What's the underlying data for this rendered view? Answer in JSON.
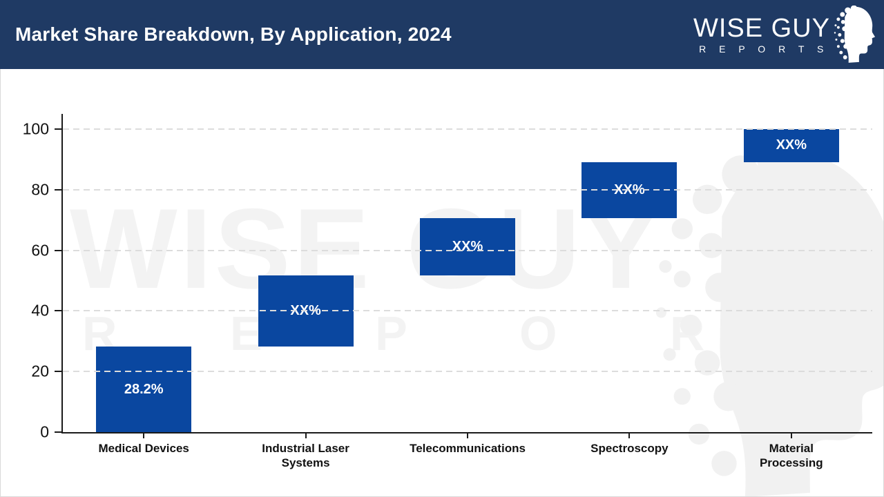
{
  "header": {
    "title": "Market Share Breakdown, By Application, 2024",
    "bg_color": "#1f3a64",
    "logo": {
      "wordmark": "WISE GUY",
      "subtext": "R E P O R T S"
    }
  },
  "watermark": {
    "wordmark": "WISE GUY",
    "subtext": "R E P O R T S"
  },
  "chart_data": {
    "type": "bar",
    "subtype": "waterfall",
    "title": "Market Share Breakdown, By Application, 2024",
    "categories": [
      "Medical Devices",
      "Industrial Laser Systems",
      "Telecommunications",
      "Spectroscopy",
      "Material Processing"
    ],
    "xtick_labels": [
      "Medical Devices",
      "Industrial Laser\nSystems",
      "Telecommunications",
      "Spectroscopy",
      "Material\nProcessing"
    ],
    "segments": [
      {
        "category": "Medical Devices",
        "start": 0,
        "end": 28.2,
        "label": "28.2%"
      },
      {
        "category": "Industrial Laser Systems",
        "start": 28.2,
        "end": 51.8,
        "label": "XX%"
      },
      {
        "category": "Telecommunications",
        "start": 51.8,
        "end": 70.7,
        "label": "XX%"
      },
      {
        "category": "Spectroscopy",
        "start": 70.7,
        "end": 89.1,
        "label": "XX%"
      },
      {
        "category": "Material Processing",
        "start": 89.1,
        "end": 100,
        "label": "XX%"
      }
    ],
    "ylim": [
      0,
      105
    ],
    "yticks": [
      0,
      20,
      40,
      60,
      80,
      100
    ],
    "grid": "horizontal-dashed",
    "legend": "none",
    "bar_color": "#0a47a0",
    "bar_label_color": "#ffffff",
    "axis_color": "#1a1a1a",
    "gridline_color": "#dcdcdc",
    "watermark_color": "#f3f3f3"
  }
}
